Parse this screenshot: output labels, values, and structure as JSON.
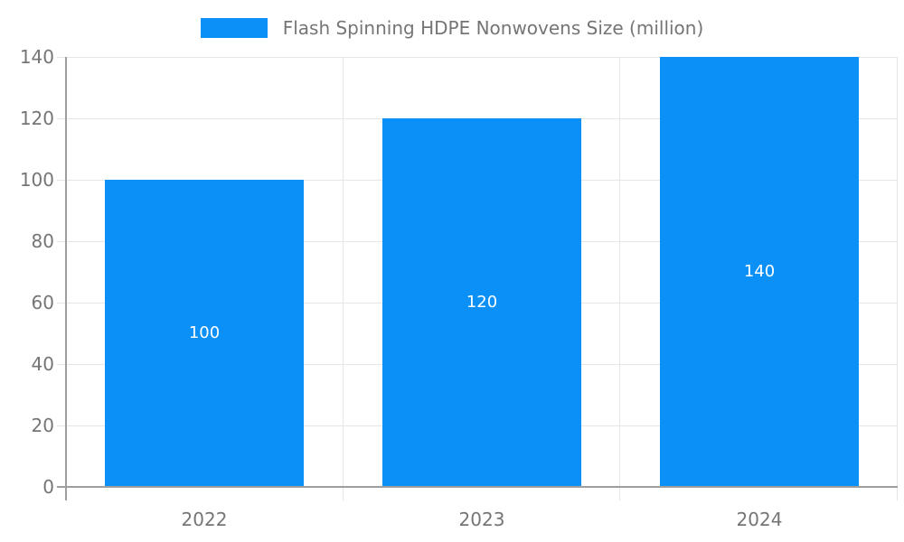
{
  "chart_data": {
    "type": "bar",
    "title": "Flash Spinning HDPE Nonwovens Size (million)",
    "categories": [
      "2022",
      "2023",
      "2024"
    ],
    "series": [
      {
        "name": "Flash Spinning HDPE Nonwovens Size (million)",
        "values": [
          100,
          120,
          140
        ]
      }
    ],
    "data_labels": [
      "100",
      "120",
      "140"
    ],
    "xlabel": "",
    "ylabel": "",
    "ylim": [
      0,
      140
    ],
    "yticks": [
      0,
      20,
      40,
      60,
      80,
      100,
      120,
      140
    ],
    "grid": true,
    "legend_position": "top-center",
    "colors": {
      "bar": "#0B90F8",
      "axis_line": "#9E9E9E",
      "gridline": "#E6E6E6",
      "tick_label": "#757575",
      "legend_text": "#757575",
      "data_label": "#FFFFFF",
      "background": "#FFFFFF"
    }
  }
}
